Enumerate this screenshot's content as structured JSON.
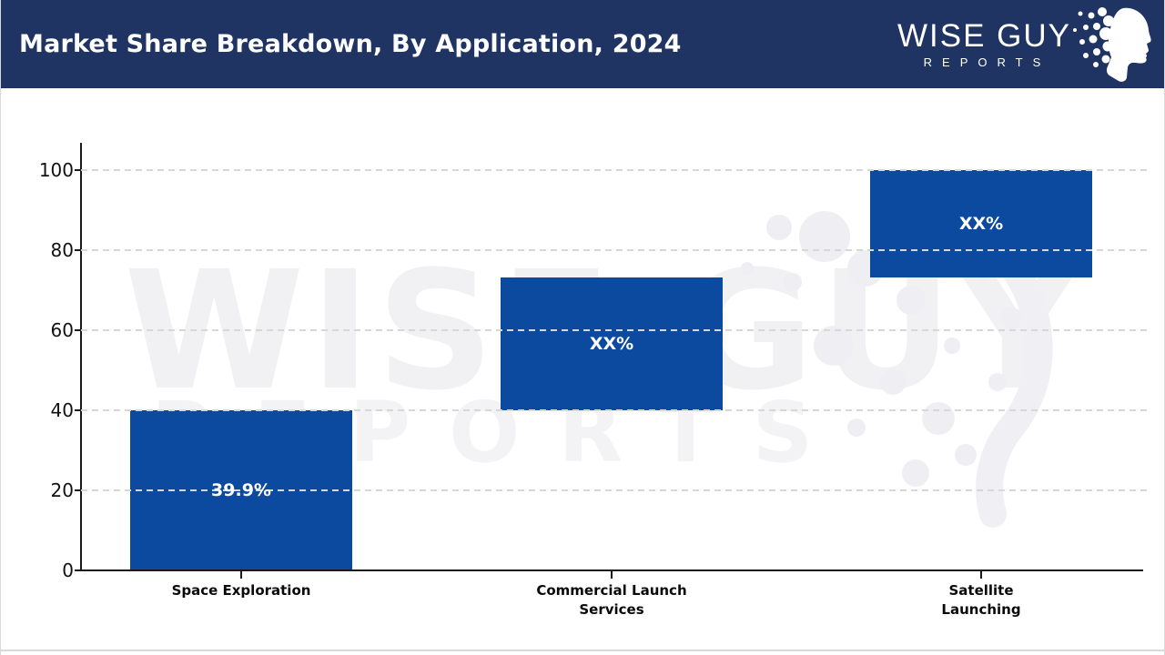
{
  "header": {
    "title": "Market Share Breakdown, By Application, 2024",
    "logo": {
      "line1": "WISE GUY",
      "line2": "REPORTS"
    }
  },
  "watermark": {
    "line1": "WISE GUY",
    "line2": "REPORTS"
  },
  "chart_data": {
    "type": "bar",
    "variant": "waterfall-floating-bars",
    "title": "Market Share Breakdown, By Application, 2024",
    "categories": [
      [
        "Space Exploration"
      ],
      [
        "Commercial Launch",
        "Services"
      ],
      [
        "Satellite",
        "Launching"
      ]
    ],
    "segments": [
      {
        "category": "Space Exploration",
        "start": 0,
        "end": 39.9,
        "label": "39.9%"
      },
      {
        "category": "Commercial Launch Services",
        "start": 39.9,
        "end": 73.1,
        "label": "XX%"
      },
      {
        "category": "Satellite Launching",
        "start": 73.1,
        "end": 100,
        "label": "XX%"
      }
    ],
    "yticks": [
      0,
      20,
      40,
      60,
      80,
      100
    ],
    "ylim": [
      0,
      106.8
    ],
    "xlabel": "",
    "ylabel": "",
    "legend": "none",
    "grid": "horizontal-dashed-over-bars",
    "bar_color": "#0b4a9e",
    "grid_color": "#d7d7d7",
    "header_color": "#1f3463",
    "label_color": "#ffffff"
  }
}
